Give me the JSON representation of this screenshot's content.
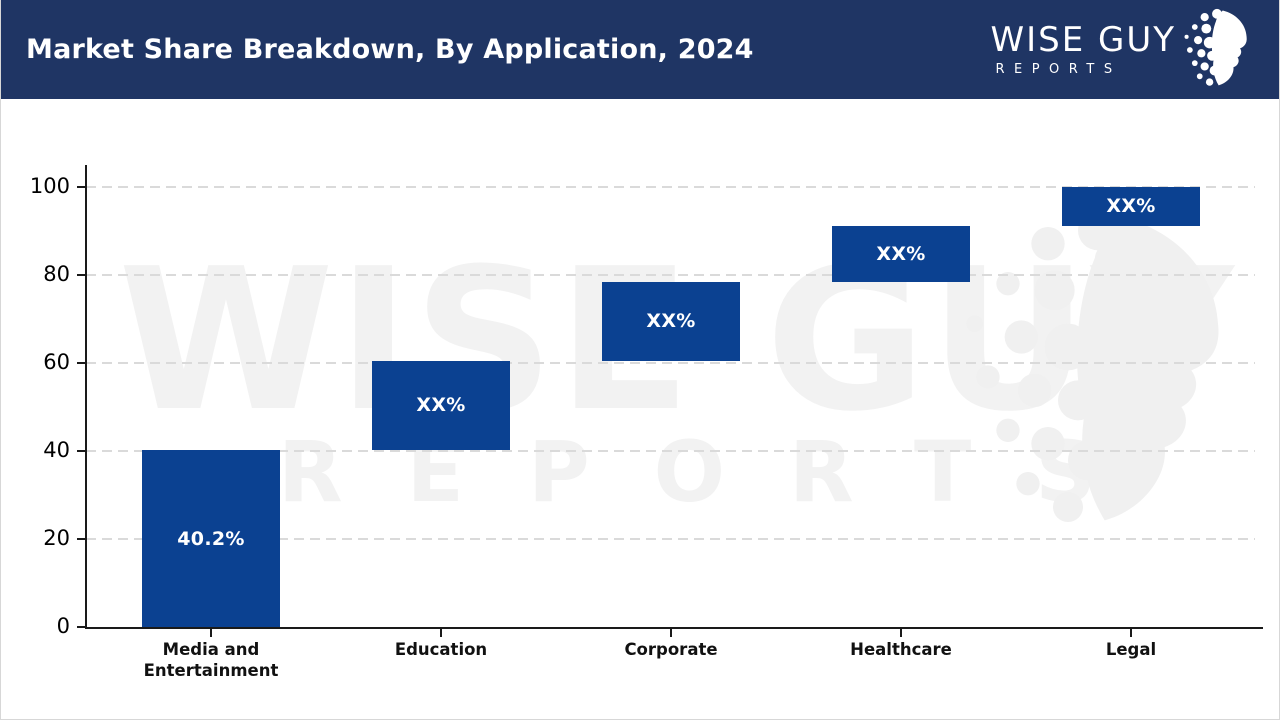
{
  "header": {
    "title": "Market Share Breakdown, By Application, 2024",
    "logo_line1": "WISE GUY",
    "logo_line2": "REPORTS",
    "bg_color": "#1f3564"
  },
  "watermark": {
    "line1": "WISE GUY",
    "line2": "REPORTS"
  },
  "chart_data": {
    "type": "bar",
    "subtype": "waterfall",
    "title": "Market Share Breakdown, By Application, 2024",
    "xlabel": "",
    "ylabel": "",
    "categories": [
      "Media and Entertainment",
      "Education",
      "Corporate",
      "Healthcare",
      "Legal"
    ],
    "segments": [
      {
        "category": "Media and Entertainment",
        "start": 0,
        "end": 40.2,
        "label": "40.2%"
      },
      {
        "category": "Education",
        "start": 40.2,
        "end": 60.5,
        "label": "XX%"
      },
      {
        "category": "Corporate",
        "start": 60.5,
        "end": 78.5,
        "label": "XX%"
      },
      {
        "category": "Healthcare",
        "start": 78.5,
        "end": 91.2,
        "label": "XX%"
      },
      {
        "category": "Legal",
        "start": 91.2,
        "end": 100,
        "label": "XX%"
      }
    ],
    "yticks": [
      0,
      20,
      40,
      60,
      80,
      100
    ],
    "ylim": [
      0,
      105
    ],
    "grid": "horizontal dashed",
    "legend": "none",
    "bar_color": "#0b4191",
    "bar_label_color": "#ffffff",
    "grid_color": "#dadada"
  }
}
